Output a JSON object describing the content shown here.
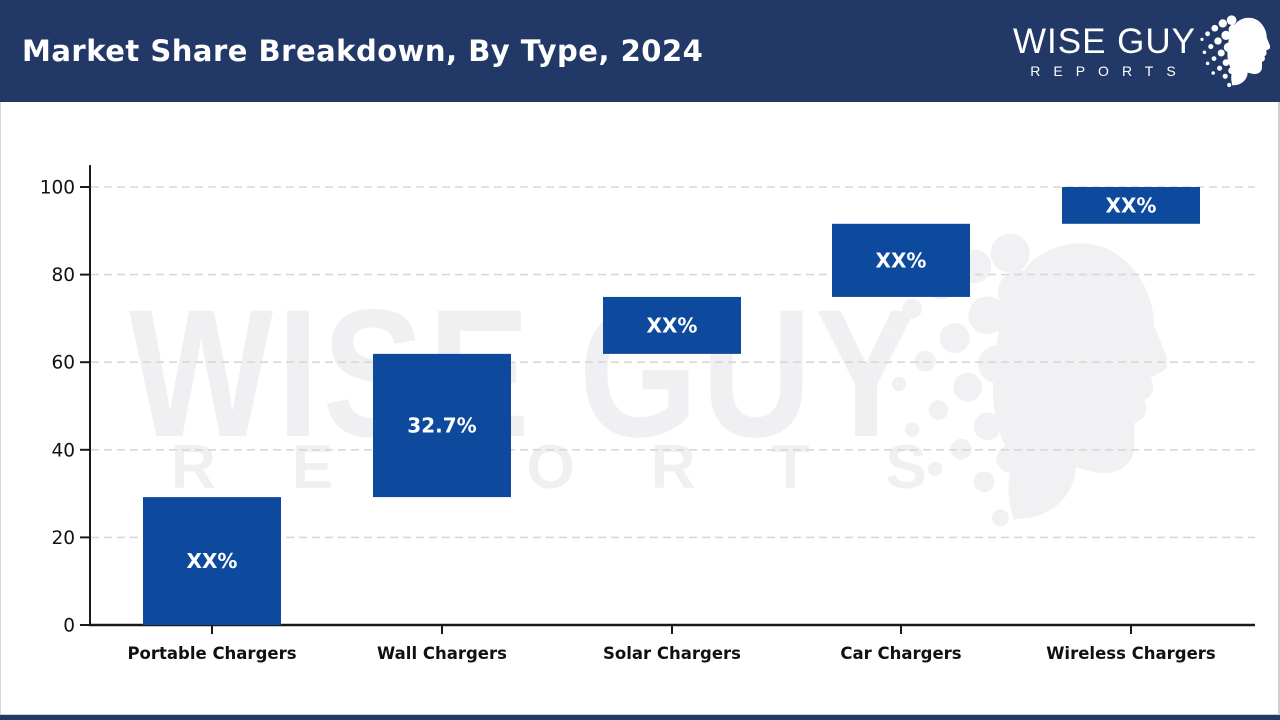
{
  "header": {
    "title": "Market Share Breakdown, By Type, 2024",
    "logo": {
      "brand_line1": "WISE GUY",
      "brand_line2": "REPORTS"
    }
  },
  "watermark": {
    "line1": "WISE GUY",
    "line2": "REPORTS"
  },
  "colors": {
    "header_navy": "#223968",
    "bar_blue": "#0d4a9d",
    "grid_gray": "#d8d8d8",
    "axis_black": "#1a1a1a",
    "bar_label_white": "#ffffff",
    "watermark_gray": "#f0f0f3"
  },
  "chart_data": {
    "type": "bar",
    "subtype": "waterfall",
    "title": "Market Share Breakdown, By Type, 2024",
    "categories": [
      "Portable Chargers",
      "Wall Chargers",
      "Solar Chargers",
      "Car Chargers",
      "Wireless Chargers"
    ],
    "segments": [
      {
        "category": "Portable Chargers",
        "start": 0,
        "end": 29.2,
        "value_label": "XX%"
      },
      {
        "category": "Wall Chargers",
        "start": 29.2,
        "end": 61.9,
        "value_label": "32.7%"
      },
      {
        "category": "Solar Chargers",
        "start": 61.9,
        "end": 74.9,
        "value_label": "XX%"
      },
      {
        "category": "Car Chargers",
        "start": 74.9,
        "end": 91.6,
        "value_label": "XX%"
      },
      {
        "category": "Wireless Chargers",
        "start": 91.6,
        "end": 100,
        "value_label": "XX%"
      }
    ],
    "y_ticks": [
      0,
      20,
      40,
      60,
      80,
      100
    ],
    "ylim": [
      0,
      105
    ],
    "xlabel": "",
    "ylabel": "",
    "grid": "horizontal-dashed",
    "legend": "none",
    "bar_color": "#0d4a9d",
    "bar_label_color": "#ffffff"
  }
}
